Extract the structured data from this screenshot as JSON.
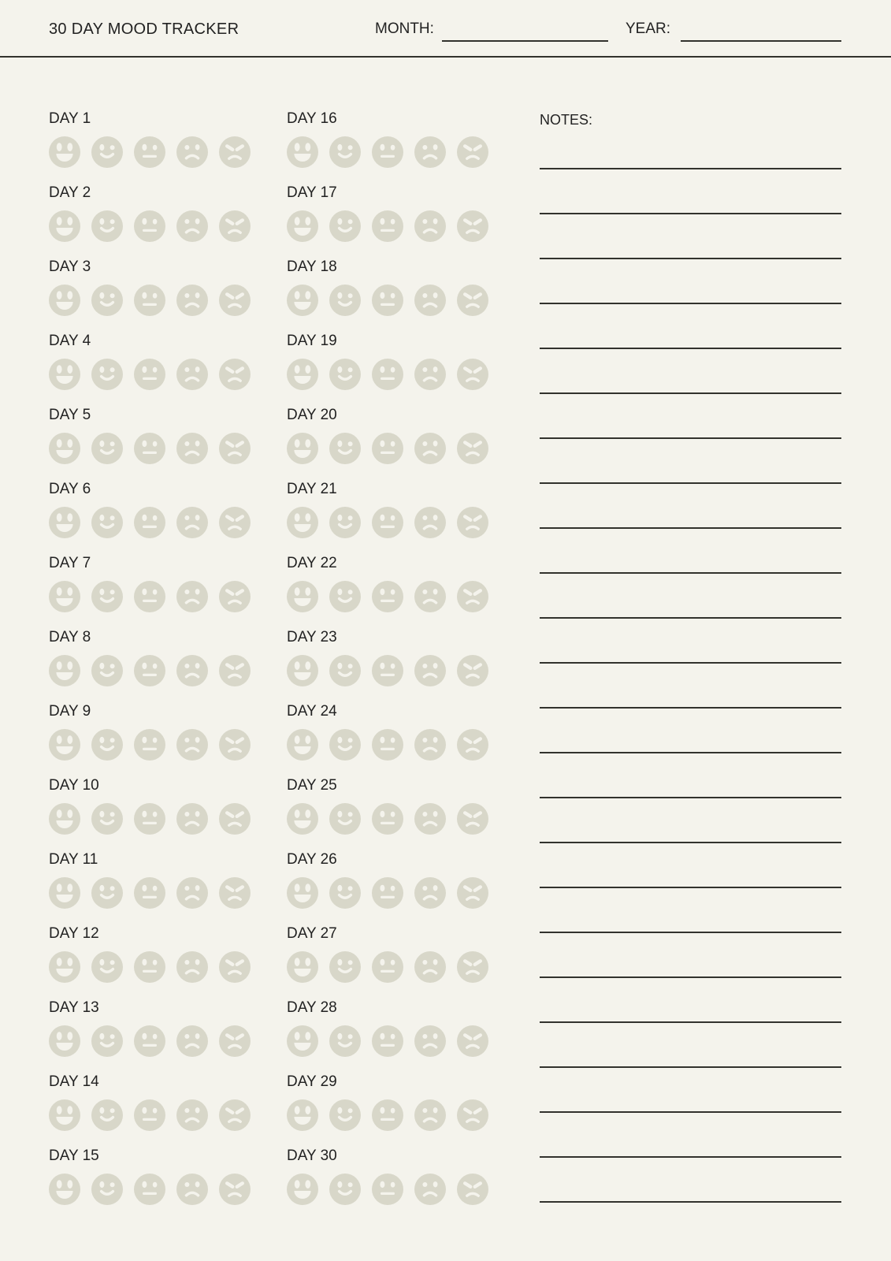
{
  "theme": {
    "page_background": "#f4f3ec",
    "text_color": "#222222",
    "rule_color": "#32322d",
    "face_color": "#d8d7c9",
    "face_feature_color": "#f4f3ec"
  },
  "header": {
    "title": "30 DAY MOOD TRACKER",
    "month_label": "MONTH:",
    "month_value": "",
    "year_label": "YEAR:",
    "year_value": ""
  },
  "moods": [
    {
      "type": "very-happy",
      "icon": "mood-very-happy-icon",
      "label": "very happy"
    },
    {
      "type": "happy",
      "icon": "mood-happy-icon",
      "label": "happy"
    },
    {
      "type": "neutral",
      "icon": "mood-neutral-icon",
      "label": "neutral"
    },
    {
      "type": "sad",
      "icon": "mood-sad-icon",
      "label": "sad"
    },
    {
      "type": "angry",
      "icon": "mood-angry-icon",
      "label": "angry"
    }
  ],
  "days": {
    "left": [
      "DAY 1",
      "DAY 2",
      "DAY 3",
      "DAY 4",
      "DAY 5",
      "DAY 6",
      "DAY 7",
      "DAY 8",
      "DAY 9",
      "DAY 10",
      "DAY 11",
      "DAY 12",
      "DAY 13",
      "DAY 14",
      "DAY 15"
    ],
    "right": [
      "DAY 16",
      "DAY 17",
      "DAY 18",
      "DAY 19",
      "DAY 20",
      "DAY 21",
      "DAY 22",
      "DAY 23",
      "DAY 24",
      "DAY 25",
      "DAY 26",
      "DAY 27",
      "DAY 28",
      "DAY 29",
      "DAY 30"
    ]
  },
  "notes": {
    "label": "NOTES:",
    "line_count": 24
  }
}
